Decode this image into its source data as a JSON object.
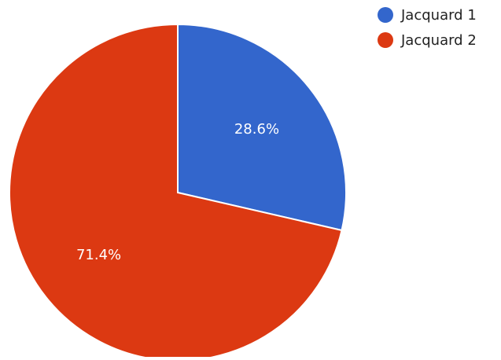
{
  "chart_data": {
    "type": "pie",
    "categories": [
      "Jacquard 1",
      "Jacquard 2"
    ],
    "values": [
      28.6,
      71.4
    ],
    "data_labels": [
      "28.6%",
      "71.4%"
    ],
    "colors": [
      "#3366cc",
      "#dc3912"
    ],
    "legend_position": "top-right",
    "start_angle": "12 o'clock",
    "direction": "clockwise"
  },
  "legend": {
    "items": [
      {
        "label": "Jacquard 1",
        "color": "#3366cc"
      },
      {
        "label": "Jacquard 2",
        "color": "#dc3912"
      }
    ]
  }
}
